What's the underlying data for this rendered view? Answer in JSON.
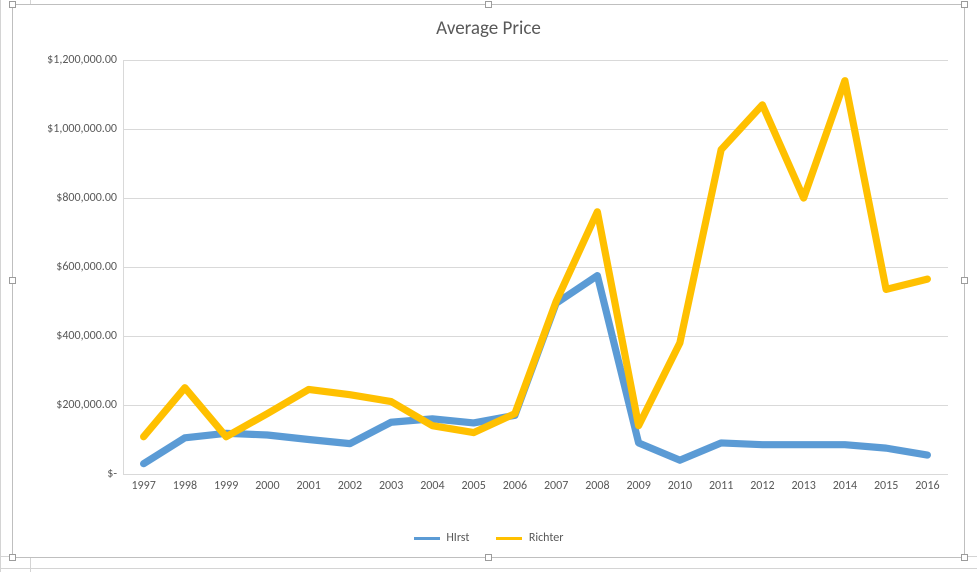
{
  "chart": {
    "type": "line",
    "title": "Average Price",
    "title_fontsize": 19,
    "title_color": "#595959",
    "background_color": "#ffffff",
    "border_color": "#bfbfbf",
    "selection_handle_border": "#9c9c9c",
    "selection_handle_fill": "#ffffff",
    "grid_color": "#d9d9d9",
    "axis_label_color": "#595959",
    "axis_label_fontsize": 12,
    "xlabels": [
      "1997",
      "1998",
      "1999",
      "2000",
      "2001",
      "2002",
      "2003",
      "2004",
      "2005",
      "2006",
      "2007",
      "2008",
      "2009",
      "2010",
      "2011",
      "2012",
      "2013",
      "2014",
      "2015",
      "2016"
    ],
    "x_positions_pct": [
      2.5,
      7.5,
      12.5,
      17.5,
      22.5,
      27.5,
      32.5,
      37.5,
      42.5,
      47.5,
      52.5,
      57.5,
      62.5,
      67.5,
      72.5,
      77.5,
      82.5,
      87.5,
      92.5,
      97.5
    ],
    "ymin": 0,
    "ymax": 1200000,
    "ytick_values": [
      0,
      200000,
      400000,
      600000,
      800000,
      1000000,
      1200000
    ],
    "ytick_labels": [
      "$-",
      "$200,000.00",
      "$400,000.00",
      "$600,000.00",
      "$800,000.00",
      "$1,000,000.00",
      "$1,200,000.00"
    ],
    "series": [
      {
        "name": "HIrst",
        "color": "#5b9bd5",
        "line_width": 3,
        "values": [
          30000,
          105000,
          118000,
          113000,
          100000,
          88000,
          150000,
          160000,
          148000,
          170000,
          495000,
          575000,
          90000,
          40000,
          90000,
          85000,
          85000,
          85000,
          75000,
          55000
        ]
      },
      {
        "name": "Richter",
        "color": "#ffc000",
        "line_width": 3,
        "values": [
          108000,
          250000,
          108000,
          175000,
          245000,
          230000,
          210000,
          140000,
          120000,
          175000,
          500000,
          760000,
          140000,
          380000,
          940000,
          1070000,
          800000,
          1140000,
          535000,
          565000
        ]
      }
    ],
    "legend": {
      "items": [
        {
          "label": "HIrst",
          "color": "#5b9bd5"
        },
        {
          "label": "Richter",
          "color": "#ffc000"
        }
      ],
      "fontsize": 12,
      "color": "#595959"
    }
  },
  "sheet": {
    "gridline_color": "#d4d4d4",
    "col_lines_x": [
      0,
      30
    ],
    "row_lines_y": [
      556,
      568
    ]
  }
}
